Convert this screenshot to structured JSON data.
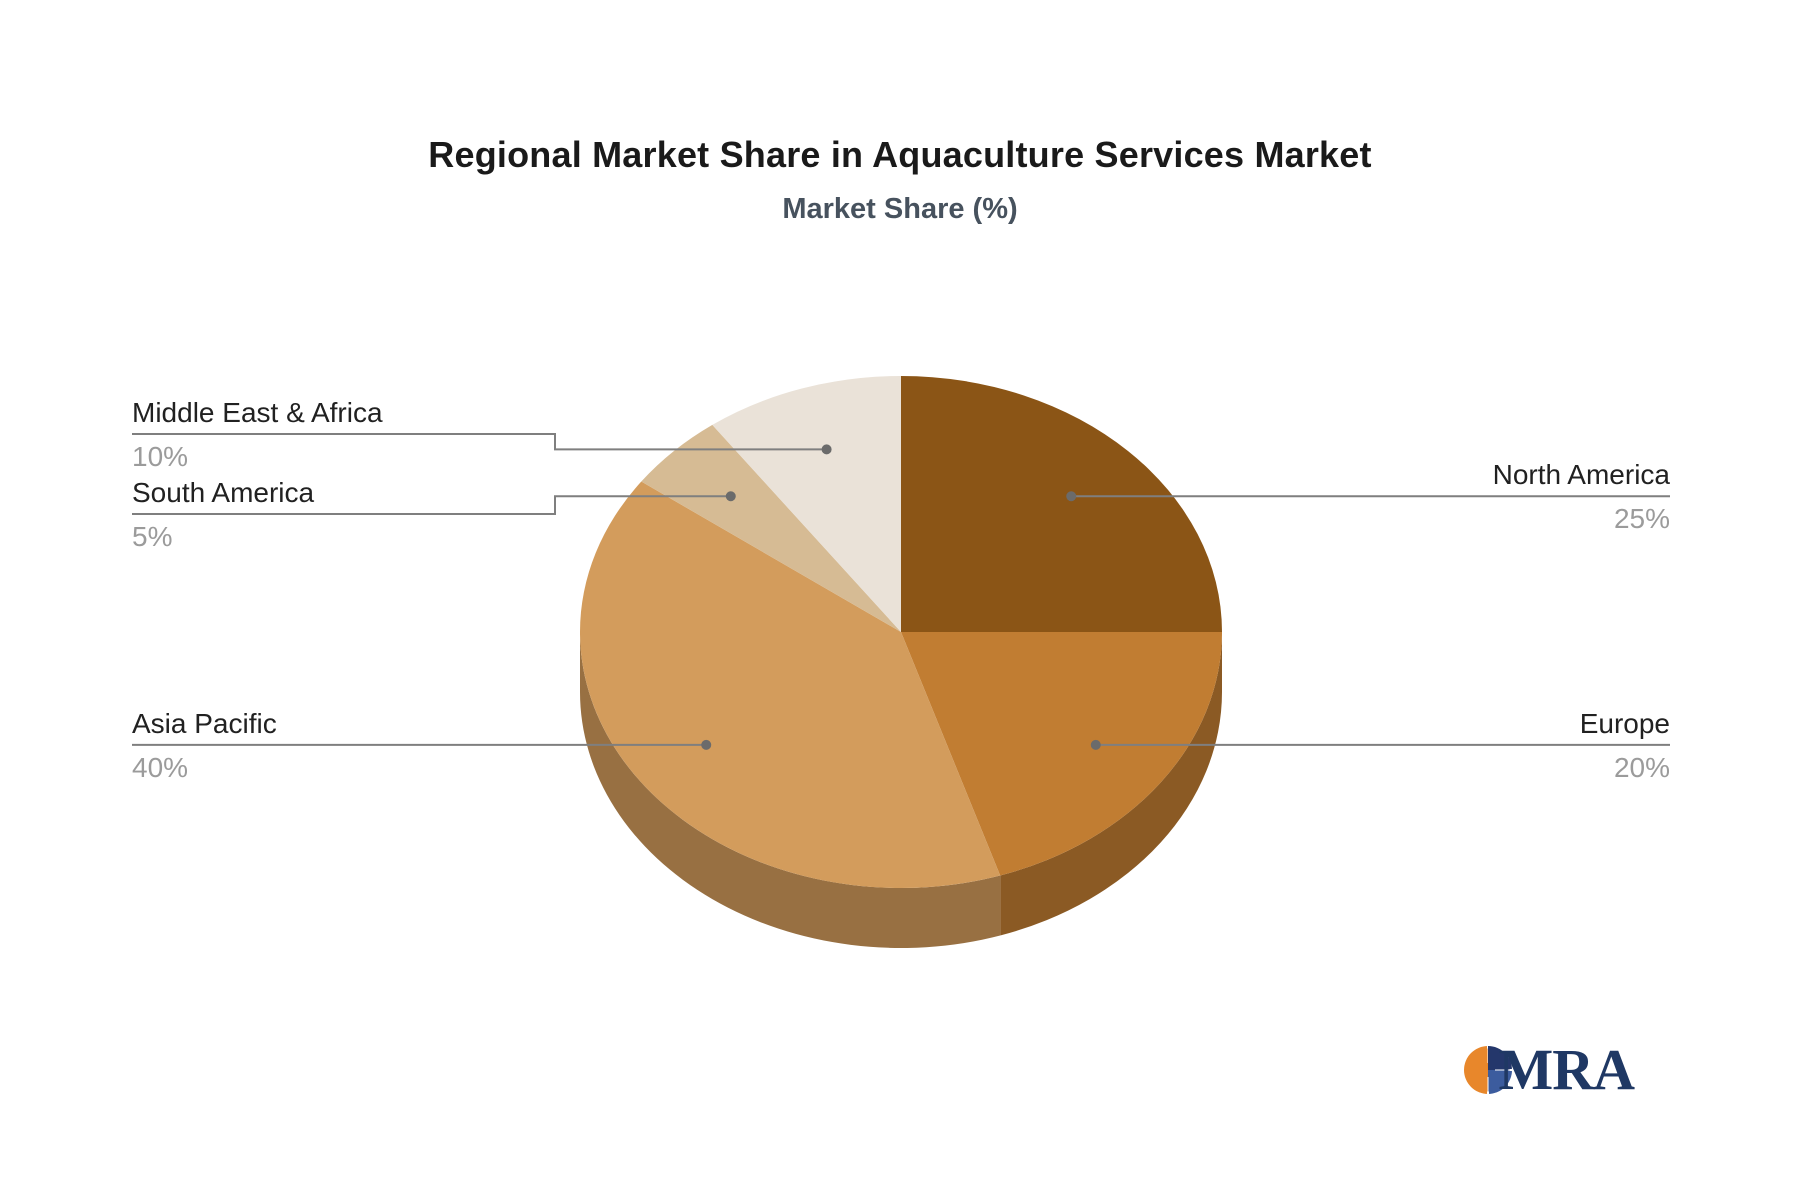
{
  "header": {
    "title": "Regional Market Share in Aquaculture Services Market",
    "subtitle": "Market Share (%)"
  },
  "chart_data": {
    "type": "pie",
    "title": "Regional Market Share in Aquaculture Services Market",
    "subtitle": "Market Share (%)",
    "unit": "%",
    "start_angle_deg": 0,
    "direction": "clockwise",
    "effect": "3d",
    "slices": [
      {
        "label": "North America",
        "value": 25,
        "pct_label": "25%",
        "color": "#8B5516",
        "side": "right"
      },
      {
        "label": "Europe",
        "value": 20,
        "pct_label": "20%",
        "color": "#C17D32",
        "side": "right"
      },
      {
        "label": "Asia Pacific",
        "value": 40,
        "pct_label": "40%",
        "color": "#D39C5C",
        "side": "left"
      },
      {
        "label": "South America",
        "value": 5,
        "pct_label": "5%",
        "color": "#D6BB94",
        "side": "left"
      },
      {
        "label": "Middle East & Africa",
        "value": 10,
        "pct_label": "10%",
        "color": "#EAE2D8",
        "side": "left"
      }
    ],
    "leader_line_color": "#7f7f7f",
    "label_color": "#212121",
    "pct_color": "#9b9b9b"
  },
  "logo": {
    "text": "MRA"
  }
}
